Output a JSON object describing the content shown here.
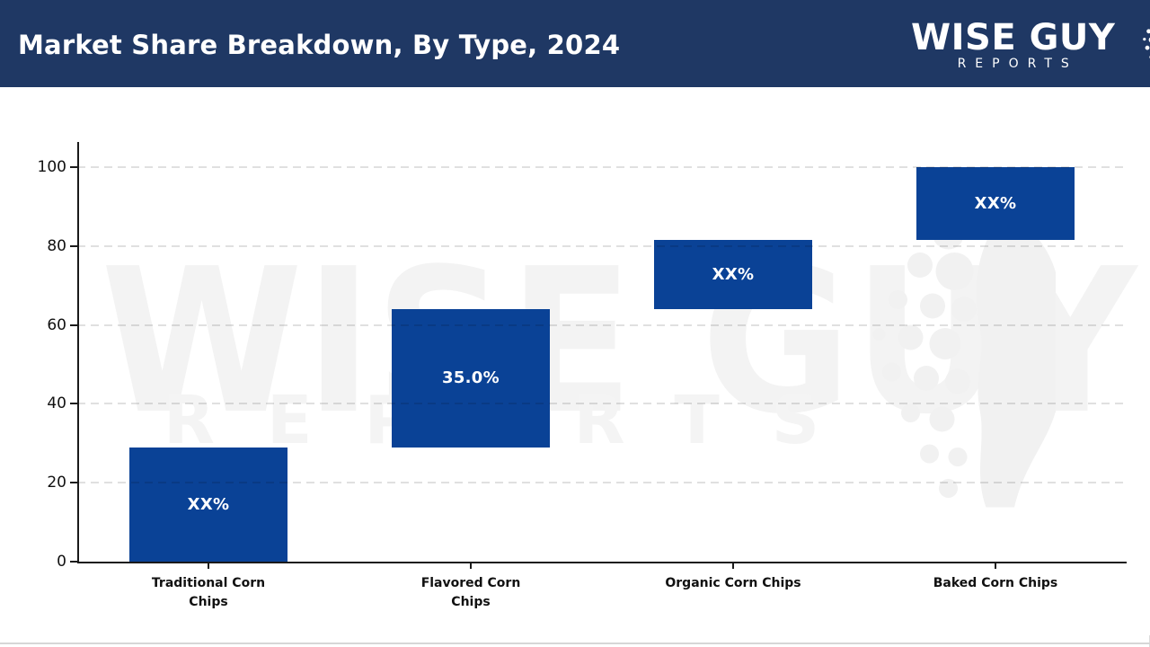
{
  "header": {
    "title": "Market Share Breakdown, By Type, 2024",
    "logo": {
      "line1": "WISE GUY",
      "line2": "REPORTS"
    }
  },
  "watermark": {
    "line1": "WISE GUY",
    "line2": "REPORTS"
  },
  "chart_data": {
    "type": "bar",
    "subtype": "floating-segment-waterfall",
    "title": "Market Share Breakdown, By Type, 2024",
    "categories": [
      "Traditional Corn\nChips",
      "Flavored Corn\nChips",
      "Organic Corn Chips",
      "Baked Corn Chips"
    ],
    "series": [
      {
        "name": "Market Share",
        "segments": [
          {
            "category": "Traditional Corn Chips",
            "start": 0,
            "end": 29,
            "value_label": "XX%"
          },
          {
            "category": "Flavored Corn Chips",
            "start": 29,
            "end": 64,
            "value_label": "35.0%"
          },
          {
            "category": "Organic Corn Chips",
            "start": 64,
            "end": 81.5,
            "value_label": "XX%"
          },
          {
            "category": "Baked Corn Chips",
            "start": 81.5,
            "end": 100,
            "value_label": "XX%"
          }
        ]
      }
    ],
    "xlabel": "",
    "ylabel": "",
    "ylim": [
      0,
      106
    ],
    "yticks": [
      0,
      20,
      40,
      60,
      80,
      100
    ],
    "grid": "horizontal-dashed",
    "legend": "none",
    "bar_color": "#0a4296",
    "value_label_color": "#ffffff",
    "header_color": "#1f3864"
  }
}
